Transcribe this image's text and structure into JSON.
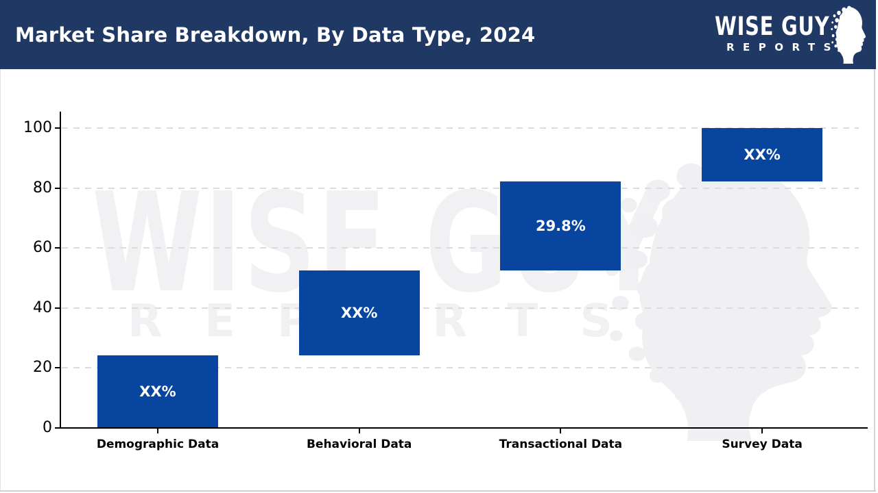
{
  "header": {
    "title": "Market Share Breakdown, By Data Type, 2024",
    "bg_color": "#1f3864",
    "logo": {
      "wordmark": "WISE GUY",
      "reports": "REPORTS"
    }
  },
  "watermark": {
    "wordmark": "WISE GUY",
    "reports": "REPORTS",
    "color": "#f1f1f3"
  },
  "chart_data": {
    "type": "bar",
    "variant": "waterfall",
    "title": "Market Share Breakdown, By Data Type, 2024",
    "categories": [
      "Demographic Data",
      "Behavioral Data",
      "Transactional Data",
      "Survey Data"
    ],
    "segments": [
      {
        "category": "Demographic Data",
        "start": 0,
        "end": 24.2,
        "label": "XX%"
      },
      {
        "category": "Behavioral Data",
        "start": 24.2,
        "end": 52.4,
        "label": "XX%"
      },
      {
        "category": "Transactional Data",
        "start": 52.4,
        "end": 82.2,
        "label": "29.8%"
      },
      {
        "category": "Survey Data",
        "start": 82.2,
        "end": 100,
        "label": "XX%"
      }
    ],
    "xlabel": "",
    "ylabel": "",
    "ylim": [
      0,
      100
    ],
    "yticks": [
      0,
      20,
      40,
      60,
      80,
      100
    ],
    "grid": "horizontal-dashed",
    "legend": "none",
    "bar_color": "#08459e",
    "value_label_color": "#ffffff"
  }
}
